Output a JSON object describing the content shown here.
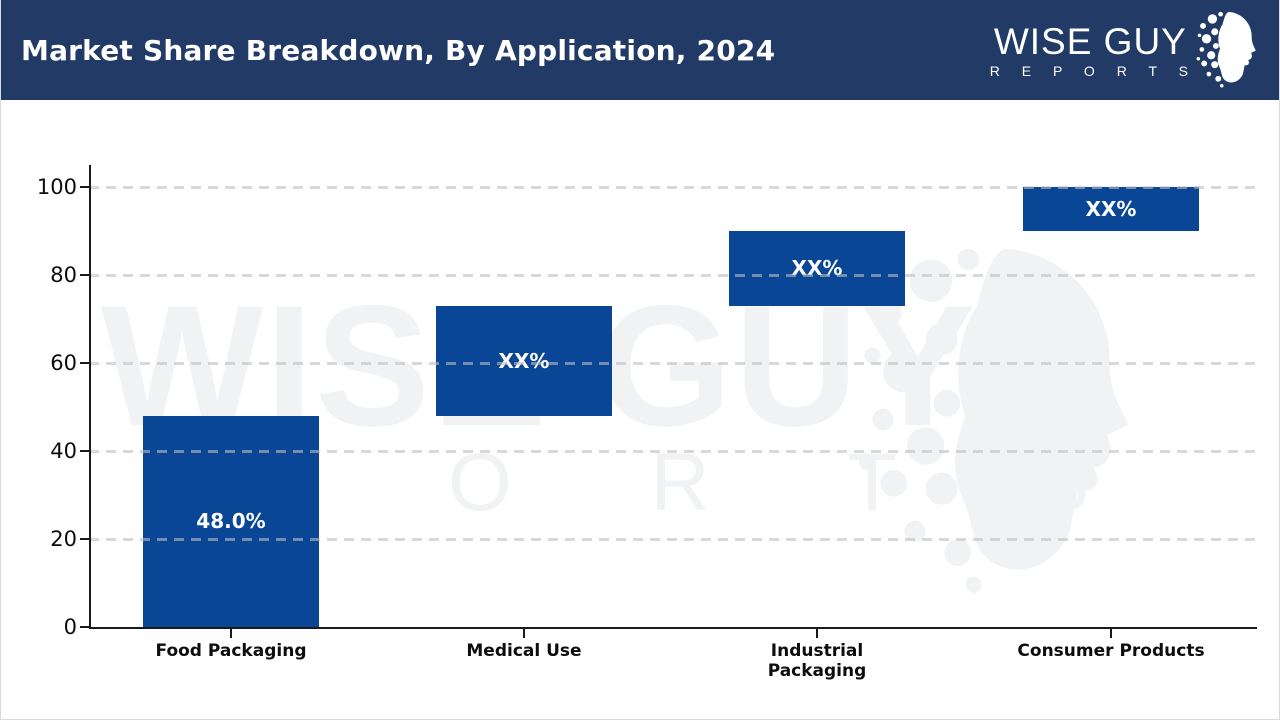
{
  "header": {
    "title": "Market Share Breakdown, By Application, 2024",
    "logo": {
      "line1": "WISE GUY",
      "line2": "R E P O R T S",
      "icon": "head-profile-dots-icon"
    }
  },
  "watermark": {
    "line1": "WISE GUY",
    "line2": "P O R T S",
    "icon": "head-profile-dots-icon"
  },
  "colors": {
    "header_bg": "#213a66",
    "bar": "#0a4696",
    "bar_label": "#ffffff",
    "axis": "#1a1a1a",
    "grid": "rgba(190,190,190,0.6)",
    "watermark": "#f1f2f4",
    "tick_label": "#0d0d0d"
  },
  "chart_data": {
    "type": "bar",
    "subtype": "waterfall",
    "title": "Market Share Breakdown, By Application, 2024",
    "categories": [
      "Food Packaging",
      "Medical Use",
      "Industrial Packaging",
      "Consumer Products"
    ],
    "categories_display": [
      "Food Packaging",
      "Medical Use",
      "Industrial\nPackaging",
      "Consumer Products"
    ],
    "segments": [
      {
        "start": 0,
        "end": 48,
        "label": "48.0%"
      },
      {
        "start": 48,
        "end": 73,
        "label": "XX%"
      },
      {
        "start": 73,
        "end": 90,
        "label": "XX%"
      },
      {
        "start": 90,
        "end": 100,
        "label": "XX%"
      }
    ],
    "bar_labels": [
      "48.0%",
      "XX%",
      "XX%",
      "XX%"
    ],
    "xlabel": "",
    "ylabel": "",
    "yticks": [
      0,
      20,
      40,
      60,
      80,
      100
    ],
    "ylim": [
      0,
      100
    ],
    "grid": "dashed horizontal, drawn over bars",
    "legend": "none"
  }
}
